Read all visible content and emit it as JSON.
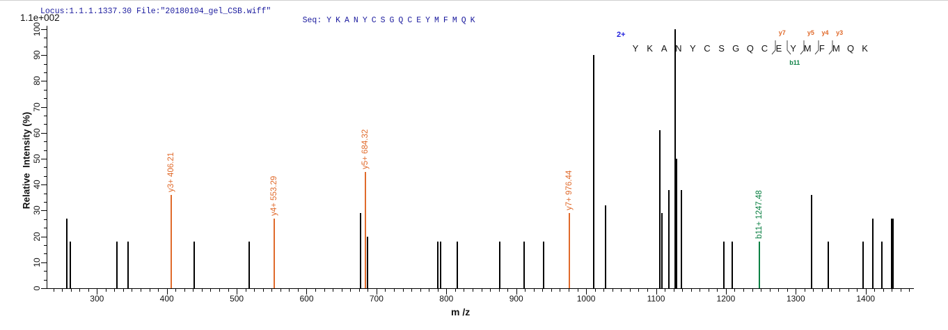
{
  "header": {
    "scale_label": "1.1e+002",
    "locus_text": "Locus:1.1.1.1337.30 File:\"20180104_gel_CSB.wiff\"",
    "seq_label": "Seq:",
    "seq_value": "YKANYCSGQCEYMFMQK"
  },
  "axes": {
    "x_title": "m /z",
    "y_title": "Relative  Intensity (%)",
    "x_major_ticks": [
      300,
      400,
      500,
      600,
      700,
      800,
      900,
      1000,
      1100,
      1200,
      1300,
      1400
    ],
    "x_minor_step": 12.5,
    "x_range": [
      228,
      1469
    ],
    "y_major_ticks": [
      0,
      10,
      20,
      30,
      40,
      50,
      60,
      70,
      80,
      90,
      100
    ],
    "y_minor_between_major": 2,
    "y_range": [
      0,
      100
    ],
    "grid": false
  },
  "annotation": {
    "precursor_charge": "2+",
    "sequence": [
      "Y",
      "K",
      "A",
      "N",
      "Y",
      "C",
      "S",
      "G",
      "Q",
      "C",
      "E",
      "Y",
      "M",
      "F",
      "M",
      "Q",
      "K"
    ],
    "fragment_markers": [
      {
        "label": "y7",
        "ion": "y",
        "position": 10
      },
      {
        "label": "b11",
        "ion": "b",
        "position": 11
      },
      {
        "label": "y5",
        "ion": "y",
        "position": 12
      },
      {
        "label": "y4",
        "ion": "y",
        "position": 13
      },
      {
        "label": "y3",
        "ion": "y",
        "position": 14
      }
    ]
  },
  "chart_data": {
    "type": "bar",
    "subtype": "ms2-stick-spectrum",
    "title": "",
    "xlabel": "m /z",
    "ylabel": "Relative  Intensity (%)",
    "xlim": [
      228,
      1469
    ],
    "ylim": [
      0,
      100
    ],
    "legend": false,
    "peaks": [
      {
        "mz": 257,
        "intensity": 27
      },
      {
        "mz": 262,
        "intensity": 18
      },
      {
        "mz": 329,
        "intensity": 18
      },
      {
        "mz": 345,
        "intensity": 18
      },
      {
        "mz": 406.21,
        "intensity": 36,
        "ion": "y3+",
        "label": "y3+ 406.21"
      },
      {
        "mz": 439,
        "intensity": 18
      },
      {
        "mz": 518,
        "intensity": 18
      },
      {
        "mz": 553.29,
        "intensity": 27,
        "ion": "y4+",
        "label": "y4+ 553.29"
      },
      {
        "mz": 677,
        "intensity": 29
      },
      {
        "mz": 684.32,
        "intensity": 45,
        "ion": "y5+",
        "label": "y5+ 684.32"
      },
      {
        "mz": 687,
        "intensity": 20,
        "w": 2
      },
      {
        "mz": 788,
        "intensity": 18
      },
      {
        "mz": 792,
        "intensity": 18
      },
      {
        "mz": 816,
        "intensity": 18
      },
      {
        "mz": 876,
        "intensity": 18
      },
      {
        "mz": 911,
        "intensity": 18
      },
      {
        "mz": 939,
        "intensity": 18
      },
      {
        "mz": 976.44,
        "intensity": 29,
        "ion": "y7+",
        "label": "y7+ 976.44"
      },
      {
        "mz": 1011,
        "intensity": 90
      },
      {
        "mz": 1028,
        "intensity": 32
      },
      {
        "mz": 1105,
        "intensity": 61
      },
      {
        "mz": 1108,
        "intensity": 29
      },
      {
        "mz": 1118,
        "intensity": 38
      },
      {
        "mz": 1127,
        "intensity": 100,
        "w": 2
      },
      {
        "mz": 1129,
        "intensity": 50,
        "w": 3
      },
      {
        "mz": 1136,
        "intensity": 38
      },
      {
        "mz": 1197,
        "intensity": 18
      },
      {
        "mz": 1209,
        "intensity": 18
      },
      {
        "mz": 1247.48,
        "intensity": 18,
        "ion": "b11+",
        "label": "b11+ 1247.48"
      },
      {
        "mz": 1323,
        "intensity": 36
      },
      {
        "mz": 1346,
        "intensity": 18
      },
      {
        "mz": 1396,
        "intensity": 18
      },
      {
        "mz": 1410,
        "intensity": 27
      },
      {
        "mz": 1423,
        "intensity": 18
      },
      {
        "mz": 1438,
        "intensity": 27,
        "w": 4
      }
    ]
  },
  "colors": {
    "header_text": "#1a1a9e",
    "peak_default": "#000000",
    "y_ion": "#e06a2b",
    "b_ion": "#0b8043",
    "charge_label": "#2222dd",
    "axis": "#000000"
  }
}
